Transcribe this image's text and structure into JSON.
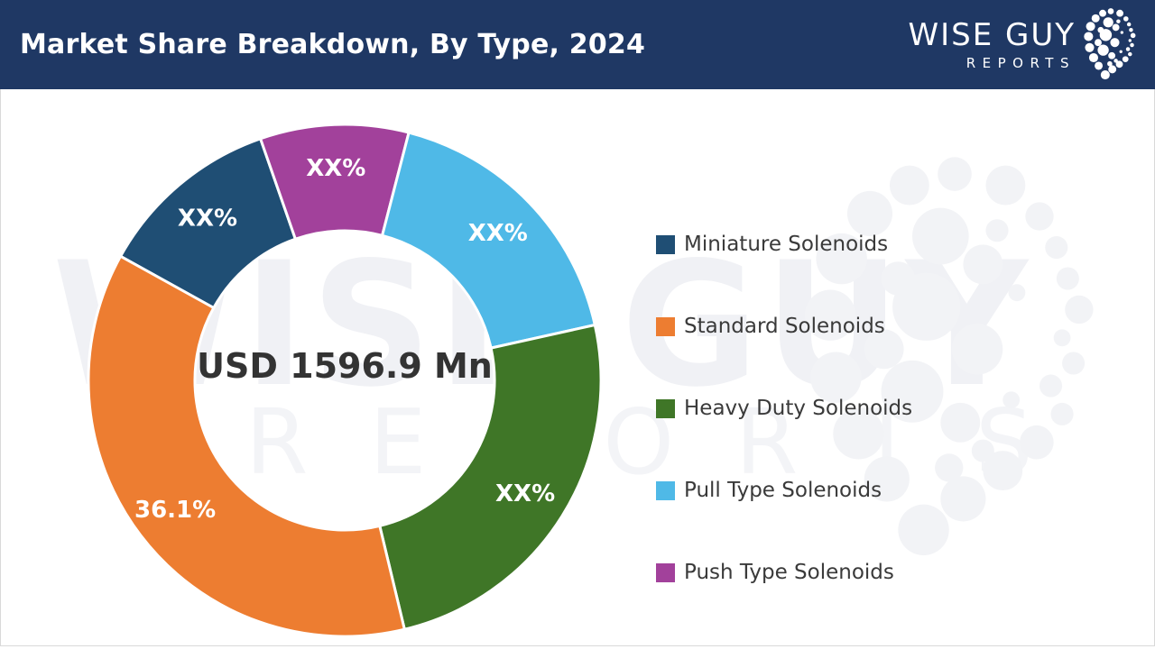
{
  "header": {
    "title": "Market Share Breakdown, By Type, 2024",
    "logo": {
      "line1": "WISE GUY",
      "line2": "REPORTS"
    }
  },
  "watermark": {
    "line1": "WISE GUY",
    "line2": "R E P O R T S"
  },
  "chart_data": {
    "type": "pie",
    "subtype": "donut",
    "title": "Market Share Breakdown, By Type, 2024",
    "center_label": "USD 1596.9 Mn",
    "legend_position": "right",
    "slices": [
      {
        "name": "Miniature Solenoids",
        "color": "#1F4E74",
        "start_deg": -61.0,
        "end_deg": -19.2,
        "displayed_label": "XX%",
        "share_pct_est": 11.6
      },
      {
        "name": "Push Type Solenoids",
        "color": "#A2419B",
        "start_deg": -19.2,
        "end_deg": 14.5,
        "displayed_label": "XX%",
        "share_pct_est": 9.4
      },
      {
        "name": "Pull Type Solenoids",
        "color": "#4FB9E7",
        "start_deg": 14.5,
        "end_deg": 77.5,
        "displayed_label": "XX%",
        "share_pct_est": 17.5
      },
      {
        "name": "Heavy Duty Solenoids",
        "color": "#3F7627",
        "start_deg": 77.5,
        "end_deg": 166.5,
        "displayed_label": "XX%",
        "share_pct_est": 24.7
      },
      {
        "name": "Standard Solenoids",
        "color": "#ED7D31",
        "start_deg": 166.5,
        "end_deg": 299.0,
        "displayed_label": "36.1%",
        "share_pct_est": 36.1
      }
    ]
  },
  "legend": {
    "items": [
      {
        "label": "Miniature Solenoids",
        "color": "#1F4E74"
      },
      {
        "label": "Standard Solenoids",
        "color": "#ED7D31"
      },
      {
        "label": "Heavy Duty Solenoids",
        "color": "#3F7627"
      },
      {
        "label": "Pull Type Solenoids",
        "color": "#4FB9E7"
      },
      {
        "label": "Push Type Solenoids",
        "color": "#A2419B"
      }
    ]
  },
  "colors": {
    "header_bg": "#1F3864",
    "center_text": "#333333",
    "watermark": "#f0f1f5"
  }
}
